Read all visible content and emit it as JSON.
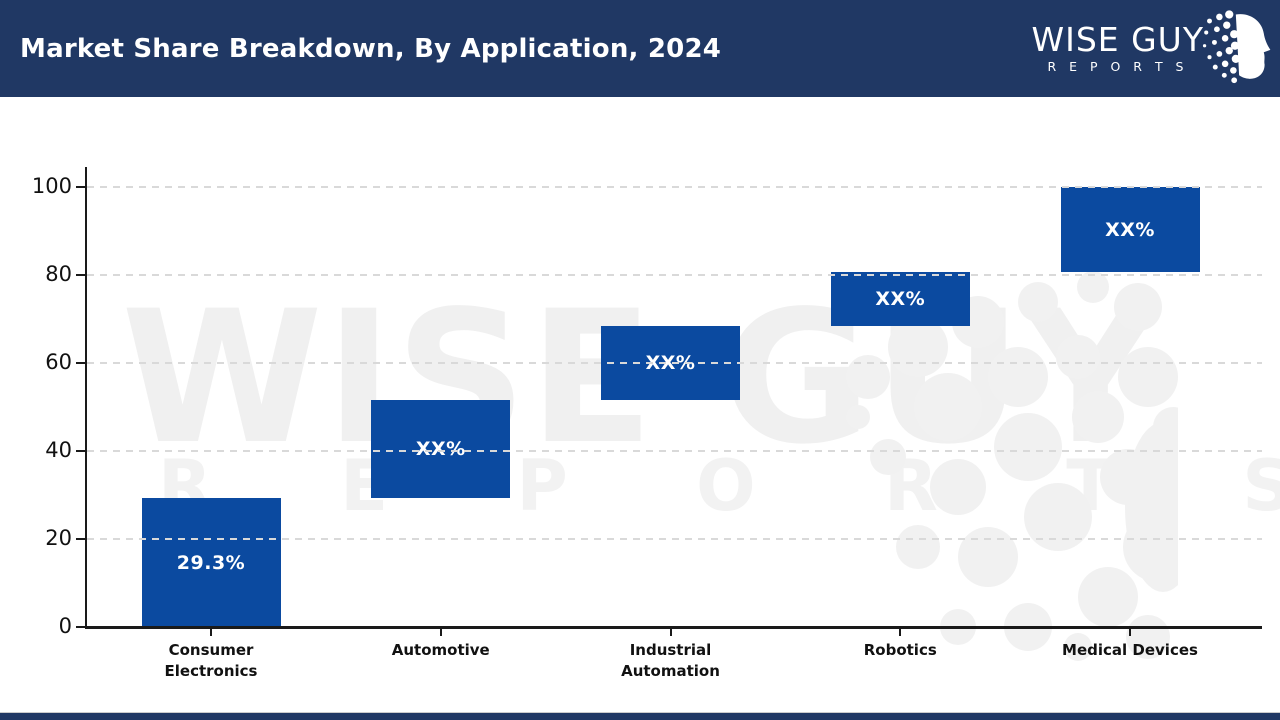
{
  "header": {
    "title": "Market Share Breakdown, By Application, 2024",
    "logo": {
      "wordmark": "WISE GUY",
      "sub": "R E P O R T S",
      "face_icon": "dotted-face-profile"
    }
  },
  "watermark": {
    "line1": "WISE GUY",
    "line2": "R E P O R T S"
  },
  "colors": {
    "header_bg": "#203864",
    "footer_bg": "#203864",
    "bar": "#0b4aa0",
    "bar_label": "#ffffff",
    "axis": "#1a1a1a",
    "grid": "#d9d9d9",
    "watermark": "#f0f0f0",
    "plot_bg": "#ffffff"
  },
  "chart_data": {
    "type": "bar",
    "variant": "waterfall",
    "title": "Market Share Breakdown, By Application, 2024",
    "xlabel": "",
    "ylabel": "",
    "ylim": [
      0,
      105
    ],
    "yticks": [
      0,
      20,
      40,
      60,
      80,
      100
    ],
    "grid": {
      "axis": "y",
      "style": "dashed",
      "on": true,
      "above_bars": true
    },
    "legend": null,
    "categories": [
      "Consumer Electronics",
      "Automotive",
      "Industrial Automation",
      "Robotics",
      "Medical Devices"
    ],
    "category_label_lines": [
      [
        "Consumer",
        "Electronics"
      ],
      [
        "Automotive"
      ],
      [
        "Industrial",
        "Automation"
      ],
      [
        "Robotics"
      ],
      [
        "Medical Devices"
      ]
    ],
    "segments": [
      {
        "category": "Consumer Electronics",
        "start": 0,
        "end": 29.3,
        "value": 29.3,
        "label": "29.3%"
      },
      {
        "category": "Automotive",
        "start": 29.3,
        "end": 51.5,
        "value": 22.2,
        "label": "XX%"
      },
      {
        "category": "Industrial Automation",
        "start": 51.5,
        "end": 68.3,
        "value": 16.8,
        "label": "XX%"
      },
      {
        "category": "Robotics",
        "start": 68.3,
        "end": 80.6,
        "value": 12.3,
        "label": "XX%"
      },
      {
        "category": "Medical Devices",
        "start": 80.6,
        "end": 100,
        "value": 19.4,
        "label": "XX%"
      }
    ]
  }
}
